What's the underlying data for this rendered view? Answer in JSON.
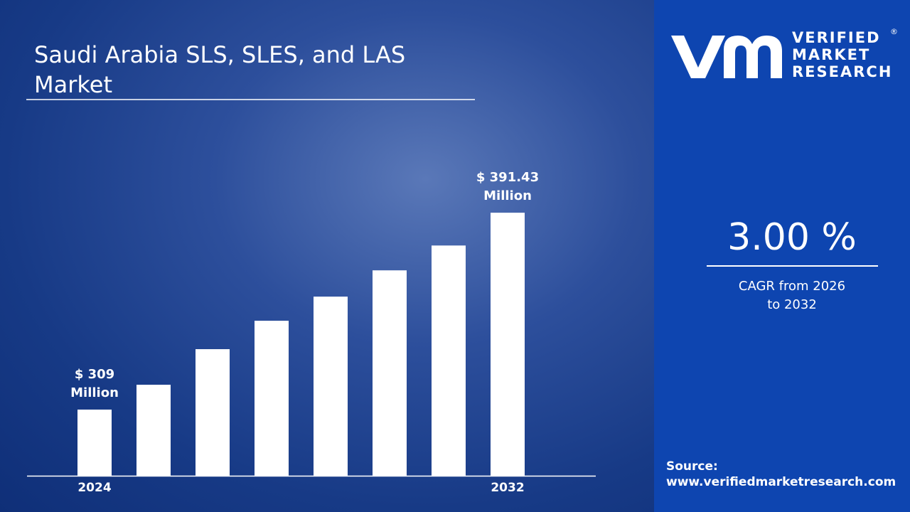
{
  "chart_data": {
    "type": "bar",
    "title": "Saudi Arabia SLS, SLES, and LAS Market",
    "categories": [
      "2024",
      null,
      null,
      null,
      null,
      null,
      null,
      "2032"
    ],
    "values": [
      309,
      319.4,
      334.3,
      346.2,
      356.3,
      367.3,
      377.7,
      391.43
    ],
    "value_labels": [
      "$ 309 Million",
      null,
      null,
      null,
      null,
      null,
      null,
      "$ 391.43 Million"
    ],
    "color": "#ffffff",
    "ylim": [
      281.3,
      401
    ]
  },
  "panel": {
    "logo": [
      "VERIFIED",
      "MARKET",
      "RESEARCH"
    ],
    "cagr_value": "3.00 %",
    "cagr_label": "CAGR from 2026 to 2032",
    "source_label": "Source:",
    "source_url": "www.verifiedmarketresearch.com"
  }
}
